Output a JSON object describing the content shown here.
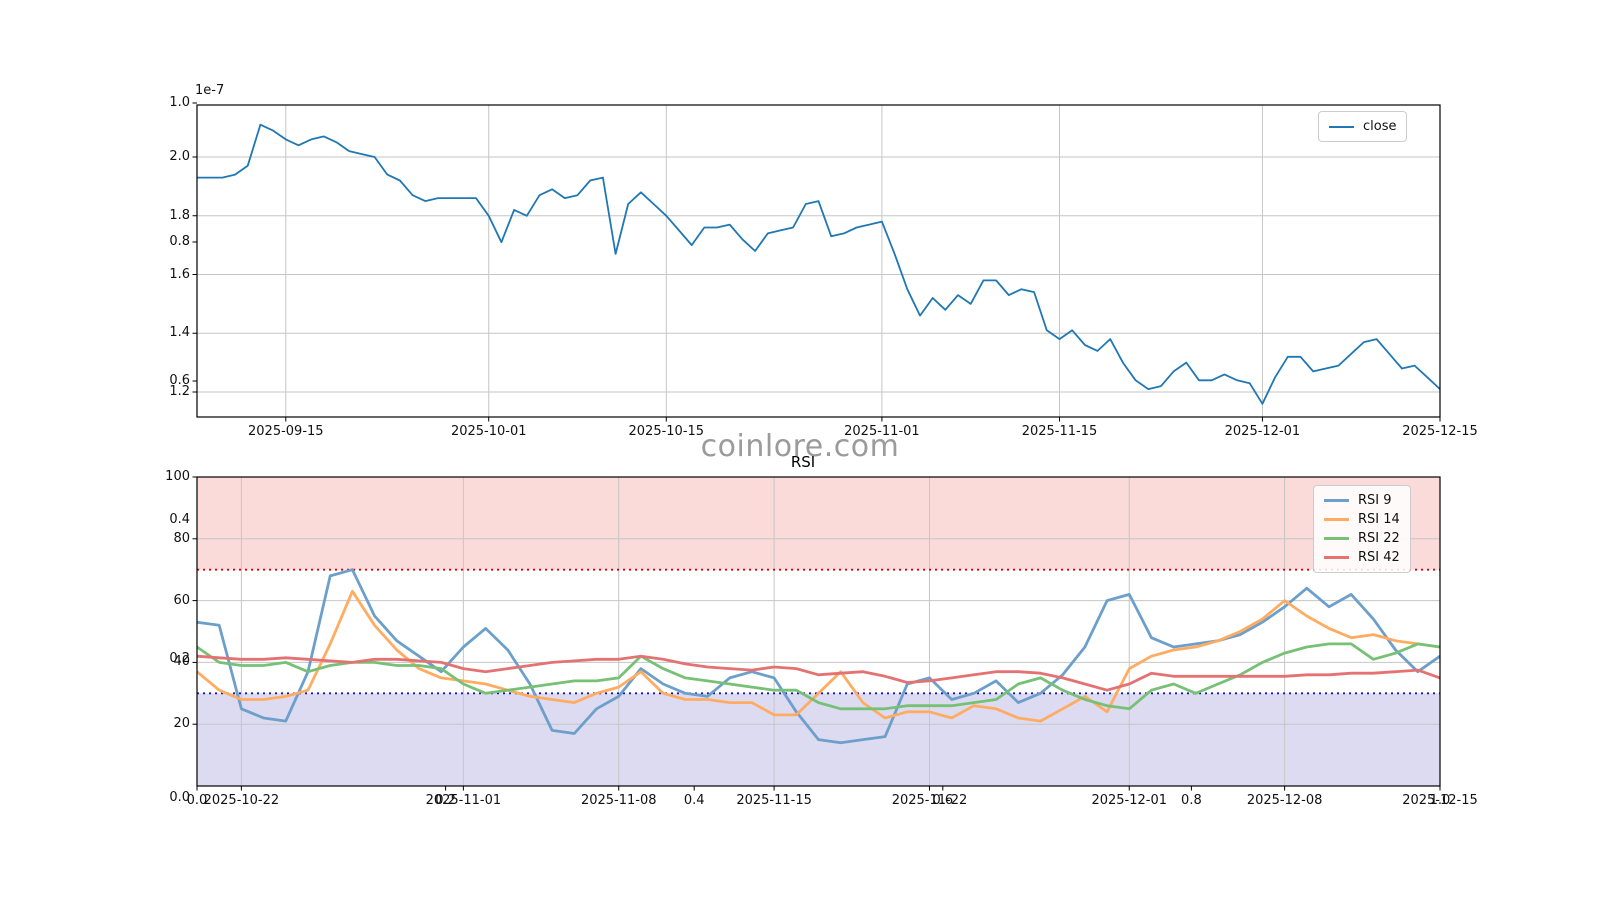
{
  "watermark": {
    "text": "coinlore.com",
    "color": "#9b9b9b"
  },
  "chart_data": [
    {
      "type": "line",
      "title": "",
      "x_start": "2025-09-08",
      "x_end": "2025-12-15",
      "x_ticks": [
        "2025-09-15",
        "2025-10-01",
        "2025-10-15",
        "2025-11-01",
        "2025-11-15",
        "2025-12-01",
        "2025-12-15"
      ],
      "y_axis_offset_label": "1e-7",
      "y_ticks": [
        "2.0",
        "1.8",
        "1.6",
        "1.4",
        "1.2"
      ],
      "y_tick_values": [
        2.0,
        1.8,
        1.6,
        1.4,
        1.2
      ],
      "y_ticks_secondary": [
        "1.0",
        "0.8",
        "0.6"
      ],
      "y_secondary_values": [
        1.0,
        0.8,
        0.6
      ],
      "ylim": [
        1.115,
        2.177
      ],
      "grid": true,
      "legend_position": "upper right",
      "series": [
        {
          "name": "close",
          "color": "#1f77b4",
          "values": [
            1.93,
            1.93,
            1.93,
            1.94,
            1.97,
            2.11,
            2.09,
            2.06,
            2.04,
            2.06,
            2.07,
            2.05,
            2.02,
            2.01,
            2.0,
            1.94,
            1.92,
            1.87,
            1.85,
            1.86,
            1.86,
            1.86,
            1.86,
            1.8,
            1.71,
            1.82,
            1.8,
            1.87,
            1.89,
            1.86,
            1.87,
            1.92,
            1.93,
            1.67,
            1.84,
            1.88,
            1.84,
            1.8,
            1.75,
            1.7,
            1.76,
            1.76,
            1.77,
            1.72,
            1.68,
            1.74,
            1.75,
            1.76,
            1.84,
            1.85,
            1.73,
            1.74,
            1.76,
            1.77,
            1.78,
            1.67,
            1.55,
            1.46,
            1.52,
            1.48,
            1.53,
            1.5,
            1.58,
            1.58,
            1.53,
            1.55,
            1.54,
            1.41,
            1.38,
            1.41,
            1.36,
            1.34,
            1.38,
            1.3,
            1.24,
            1.21,
            1.22,
            1.27,
            1.3,
            1.24,
            1.24,
            1.26,
            1.24,
            1.23,
            1.16,
            1.25,
            1.32,
            1.32,
            1.27,
            1.28,
            1.29,
            1.33,
            1.37,
            1.38,
            1.33,
            1.28,
            1.29,
            1.25,
            1.21
          ]
        }
      ]
    },
    {
      "type": "line",
      "title": "RSI",
      "x_start": "2025-10-20",
      "x_end": "2025-12-15",
      "x_ticks": [
        "2025-10-22",
        "2025-11-01",
        "2025-11-08",
        "2025-11-15",
        "2025-11-22",
        "2025-12-01",
        "2025-12-08",
        "2025-12-15"
      ],
      "x_ticks_secondary": [
        "0.0",
        "0.2",
        "0.4",
        "0.6",
        "0.8",
        "1.0"
      ],
      "x_secondary_values": [
        0.0,
        0.2,
        0.4,
        0.6,
        0.8,
        1.0
      ],
      "y_ticks": [
        "100",
        "80",
        "60",
        "40",
        "20"
      ],
      "y_tick_values": [
        100,
        80,
        60,
        40,
        20
      ],
      "y_ticks_secondary": [
        "0.4",
        "0.2",
        "0.0"
      ],
      "y_secondary_values": [
        0.4,
        0.2,
        0.0
      ],
      "ylim": [
        0,
        100
      ],
      "grid": true,
      "overbought_band": {
        "from": 70,
        "to": 100,
        "color": "#fbdada",
        "line_value": 70,
        "line_color": "#dd0000"
      },
      "oversold_band": {
        "from": 0,
        "to": 30,
        "color": "#dddbf1",
        "line_value": 30,
        "line_color": "#1414cc"
      },
      "legend_position": "upper right",
      "series": [
        {
          "name": "RSI 9",
          "color": "#6d9fcb",
          "values": [
            53,
            52,
            25,
            22,
            21,
            37,
            68,
            70,
            55,
            47,
            42,
            37,
            45,
            51,
            44,
            33,
            18,
            17,
            25,
            29,
            38,
            33,
            30,
            29,
            35,
            37,
            35,
            24,
            15,
            14,
            15,
            16,
            33,
            35,
            28,
            30,
            34,
            27,
            30,
            36,
            45,
            60,
            62,
            48,
            45,
            46,
            47,
            49,
            53,
            58,
            64,
            58,
            62,
            54,
            44,
            37,
            42
          ]
        },
        {
          "name": "RSI 14",
          "color": "#ffac62",
          "values": [
            37,
            31,
            28,
            28,
            29,
            31,
            46,
            63,
            52,
            44,
            38,
            35,
            34,
            33,
            31,
            29,
            28,
            27,
            30,
            32,
            37,
            30,
            28,
            28,
            27,
            27,
            23,
            23,
            30,
            37,
            27,
            22,
            24,
            24,
            22,
            26,
            25,
            22,
            21,
            25,
            29,
            24,
            38,
            42,
            44,
            45,
            47,
            50,
            54,
            60,
            55,
            51,
            48,
            49,
            47,
            46,
            45
          ]
        },
        {
          "name": "RSI 22",
          "color": "#76c176",
          "values": [
            45,
            40,
            39,
            39,
            40,
            37,
            39,
            40,
            40,
            39,
            39,
            38,
            33,
            30,
            31,
            32,
            33,
            34,
            34,
            35,
            42,
            38,
            35,
            34,
            33,
            32,
            31,
            31,
            27,
            25,
            25,
            25,
            26,
            26,
            26,
            27,
            28,
            33,
            35,
            31,
            28,
            26,
            25,
            31,
            33,
            30,
            33,
            36,
            40,
            43,
            45,
            46,
            46,
            41,
            43,
            46,
            45
          ]
        },
        {
          "name": "RSI 42",
          "color": "#e47273",
          "values": [
            42,
            41.5,
            41,
            41,
            41.5,
            41,
            40.5,
            40,
            41,
            41,
            40.5,
            40,
            38,
            37,
            38,
            39,
            40,
            40.5,
            41,
            41,
            42,
            41,
            39.5,
            38.5,
            38,
            37.5,
            38.5,
            38,
            36,
            36.5,
            37,
            35.5,
            33.5,
            34,
            35,
            36,
            37,
            37,
            36.5,
            35,
            33,
            31,
            33,
            36.5,
            35.5,
            35.5,
            35.5,
            35.5,
            35.5,
            35.5,
            36,
            36,
            36.5,
            36.5,
            37,
            37.5,
            35
          ]
        }
      ]
    }
  ]
}
